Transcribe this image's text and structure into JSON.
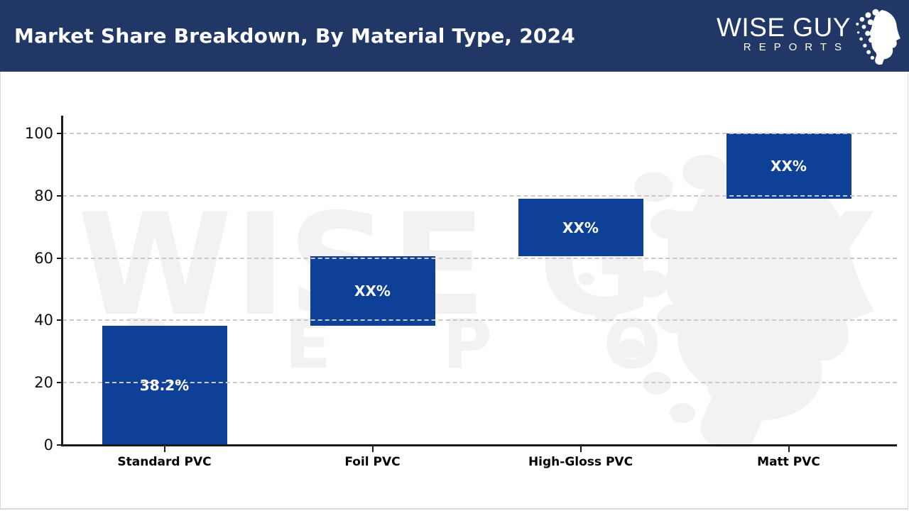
{
  "header": {
    "title": "Market Share Breakdown, By Material Type, 2024",
    "logo": {
      "wordmark": "WISE GUY",
      "subtext": "REPORTS"
    }
  },
  "watermark": {
    "line1": "WISE GUY",
    "line2": "R E P O R T S"
  },
  "colors": {
    "header_bg": "#213765",
    "bar": "#0d4096",
    "grid": "#c9c9c9",
    "axis": "#1a1a1a",
    "watermark": "#f2f2f2",
    "border": "#d9d9d9",
    "bar_label": "#ffffff"
  },
  "chart_data": {
    "type": "bar",
    "subtype": "waterfall",
    "title": "Market Share Breakdown, By Material Type, 2024",
    "xlabel": "",
    "ylabel": "",
    "categories": [
      "Standard PVC",
      "Foil PVC",
      "High-Gloss PVC",
      "Matt PVC"
    ],
    "segments": [
      {
        "category": "Standard PVC",
        "start": 0,
        "end": 38.2,
        "label": "38.2%"
      },
      {
        "category": "Foil PVC",
        "start": 38.2,
        "end": 60.5,
        "label": "XX%"
      },
      {
        "category": "High-Gloss PVC",
        "start": 60.5,
        "end": 79.0,
        "label": "XX%"
      },
      {
        "category": "Matt PVC",
        "start": 79.0,
        "end": 100.0,
        "label": "XX%"
      }
    ],
    "yticks": [
      0,
      20,
      40,
      60,
      80,
      100
    ],
    "ylim": [
      0,
      105
    ],
    "grid": "horizontal-dashed-over-bars",
    "legend": "none",
    "bar_color": "#0d4096",
    "value_labels_inside_bars": true
  }
}
